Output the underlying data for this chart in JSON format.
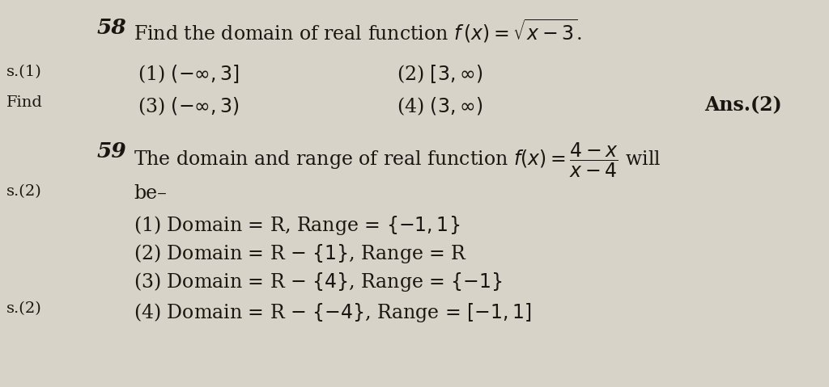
{
  "bg_color": "#d8d3c8",
  "text_color": "#1a1510",
  "figsize": [
    10.24,
    4.79
  ],
  "dpi": 100,
  "q58_number": "58",
  "q58_opts": [
    [
      "(1) $(-\\infty, 3]$",
      "(2) $[3, \\infty)$"
    ],
    [
      "(3) $(-\\infty, 3)$",
      "(4) $(3, \\infty)$"
    ]
  ],
  "q58_ans": "Ans.(2)",
  "q58_left1": "s.(1)",
  "q58_left2": "Find",
  "q59_number": "59",
  "q59_be": "be–",
  "q59_left1": "s.(2)",
  "q59_opts": [
    "(1) Domain = R, Range = $\\{-1, 1\\}$",
    "(2) Domain = R $-$ $\\{1\\}$, Range = R",
    "(3) Domain = R $-$ $\\{4\\}$, Range = $\\{-1\\}$",
    "(4) Domain = R $-$ $\\{-4\\}$, Range = $[-1, 1]$"
  ],
  "q59_left2": "s.(2)",
  "fs_main": 17,
  "fs_small": 14,
  "fs_ans": 17
}
